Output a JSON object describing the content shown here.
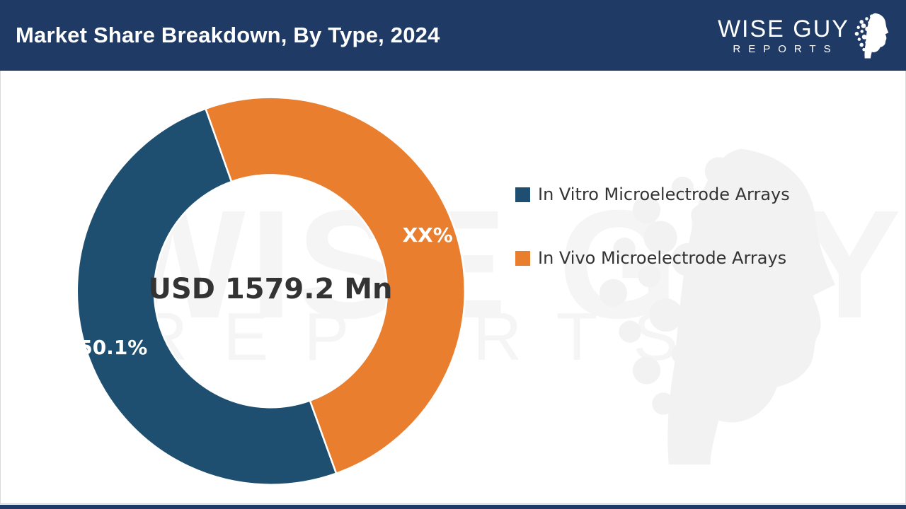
{
  "header": {
    "title": "Market Share Breakdown, By Type, 2024"
  },
  "logo": {
    "line1": "WISE GUY",
    "line2": "REPORTS"
  },
  "watermark": {
    "line1": "WISE GUY",
    "line2": "REPORTS"
  },
  "chart_data": {
    "type": "pie",
    "subtype": "donut",
    "title": "Market Share Breakdown, By Type, 2024",
    "center_label": "USD 1579.2 Mn",
    "series": [
      {
        "name": "In Vitro Microelectrode Arrays",
        "value": 50.1,
        "label": "50.1%",
        "color": "#1E4F70"
      },
      {
        "name": "In Vivo Microelectrode Arrays",
        "value": 49.9,
        "label": "XX%",
        "color": "#E87E2E"
      }
    ],
    "legend_position": "right",
    "hole_ratio": 0.6,
    "rotation_deg": 109.5,
    "direction": "counterclockwise"
  },
  "colors": {
    "header_bg": "#203A66",
    "footer_bg": "#203A66",
    "center_text": "#333333",
    "slice_label_text": "#ffffff",
    "watermark": "#f5f5f6",
    "frame_border": "#d9d9d9"
  }
}
